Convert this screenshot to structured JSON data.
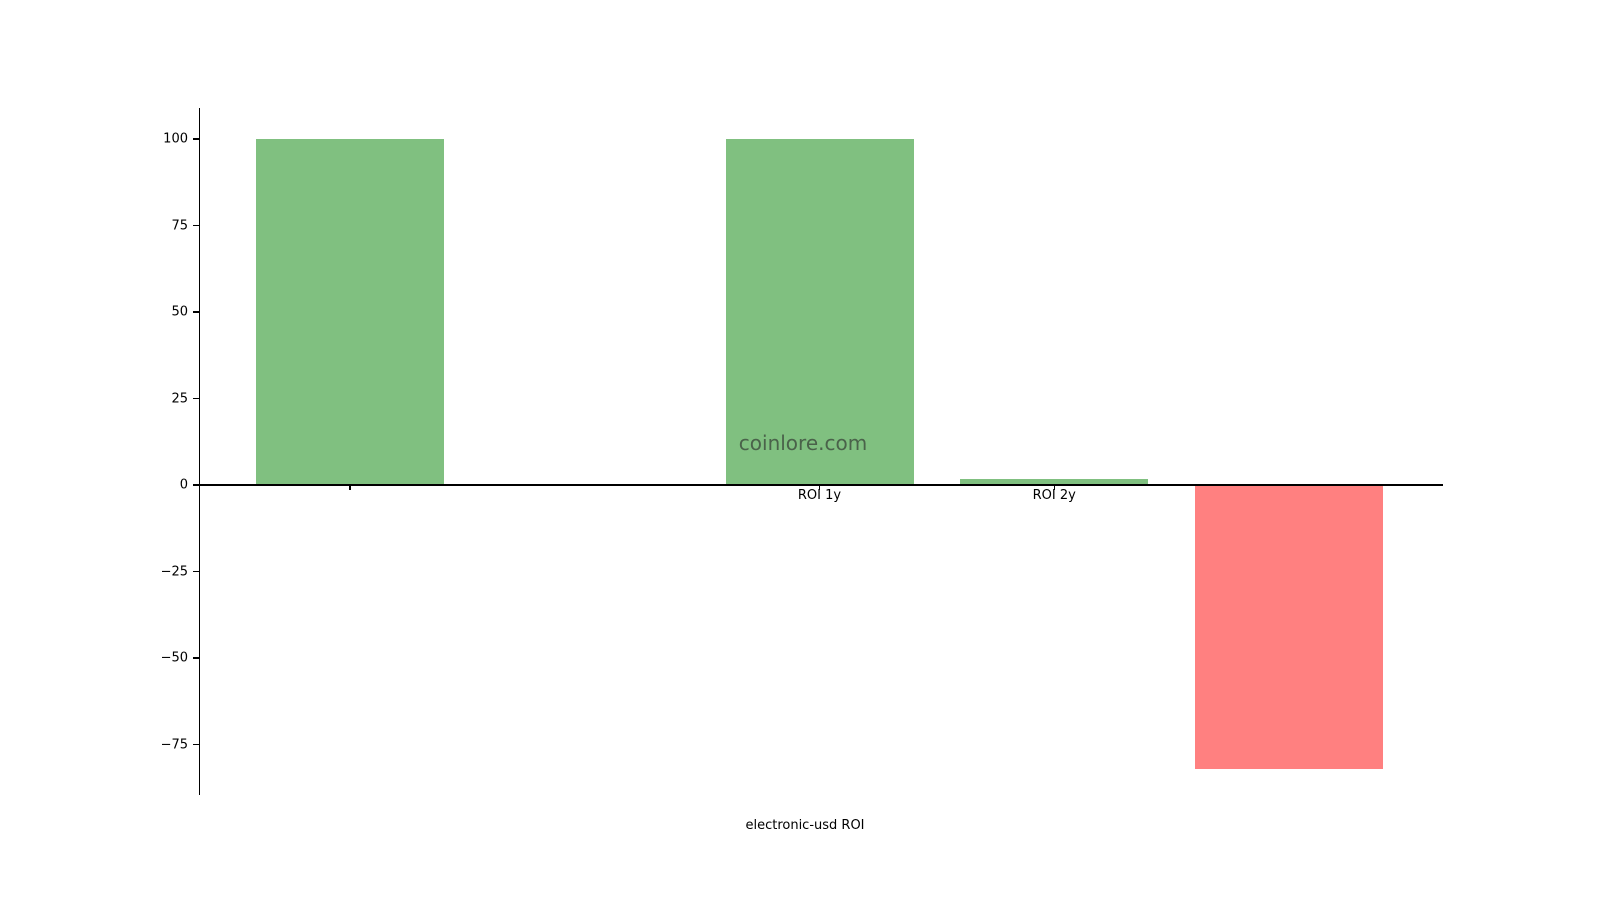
{
  "chart_data": {
    "type": "bar",
    "title": "electronic-usd ROI",
    "watermark": "coinlore.com",
    "xlabel": "",
    "ylabel": "",
    "ylim": [
      -87,
      110
    ],
    "grid": false,
    "legend": false,
    "yticks": [
      "100",
      "75",
      "50",
      "25",
      "0",
      "−25",
      "−50",
      "−75"
    ],
    "ytick_values": [
      100,
      75,
      50,
      25,
      0,
      -25,
      -50,
      -75
    ],
    "total_slots": 5,
    "bars": [
      {
        "label": "",
        "value": 100,
        "slot": 0,
        "color_key": "positive",
        "tick": true
      },
      {
        "label": "ROI 1y",
        "value": 100,
        "slot": 2,
        "color_key": "positive",
        "tick": true
      },
      {
        "label": "ROI 2y",
        "value": 1.7,
        "slot": 3,
        "color_key": "positive",
        "tick": true
      },
      {
        "label": "",
        "value": -82,
        "slot": 4,
        "color_key": "negative",
        "tick": false
      }
    ],
    "colors": {
      "positive": "#80c080",
      "negative": "#ff8080",
      "axis": "#000000",
      "text": "#000000"
    }
  }
}
